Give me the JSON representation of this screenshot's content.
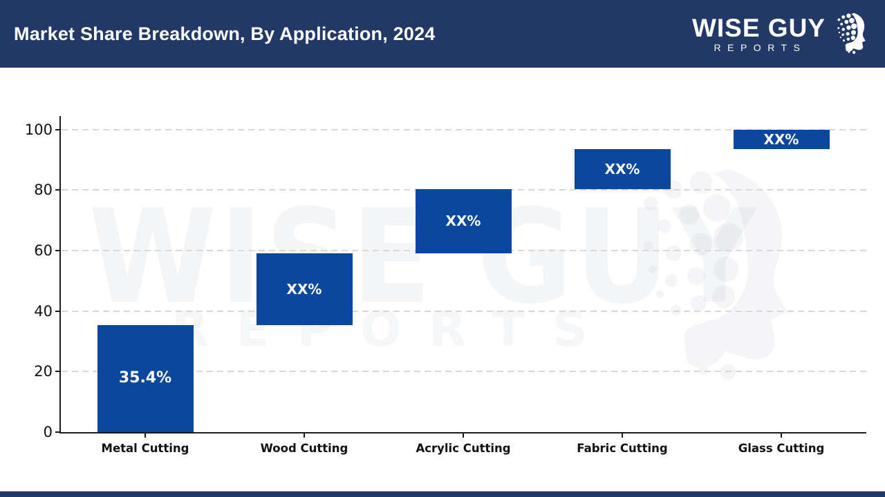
{
  "header": {
    "title": "Market Share Breakdown, By Application, 2024",
    "logo": {
      "line1": "WISE GUY",
      "line2": "REPORTS"
    }
  },
  "watermark": {
    "line1": "WISE GUY",
    "line2": "REPORTS"
  },
  "colors": {
    "header_bg": "#223968",
    "footer_bg": "#223968",
    "bar": "#0c479e",
    "bar_label": "#ffffff",
    "grid": "#d9d9d9",
    "axis": "#1a1a1a"
  },
  "chart_data": {
    "type": "bar",
    "subtype": "waterfall",
    "title": "Market Share Breakdown, By Application, 2024",
    "categories": [
      "Metal Cutting",
      "Wood Cutting",
      "Acrylic Cutting",
      "Fabric Cutting",
      "Glass Cutting"
    ],
    "segments": [
      {
        "category": "Metal Cutting",
        "start": 0,
        "end": 35.4,
        "label": "35.4%"
      },
      {
        "category": "Wood Cutting",
        "start": 35.4,
        "end": 59.0,
        "label": "XX%"
      },
      {
        "category": "Acrylic Cutting",
        "start": 59.0,
        "end": 80.4,
        "label": "XX%"
      },
      {
        "category": "Fabric Cutting",
        "start": 80.4,
        "end": 93.5,
        "label": "XX%"
      },
      {
        "category": "Glass Cutting",
        "start": 93.5,
        "end": 100,
        "label": "XX%"
      }
    ],
    "xlabel": "",
    "ylabel": "",
    "y_ticks": [
      0,
      20,
      40,
      60,
      80,
      100
    ],
    "ylim": [
      0,
      105
    ],
    "grid": "horizontal-dashed",
    "legend": "none"
  }
}
